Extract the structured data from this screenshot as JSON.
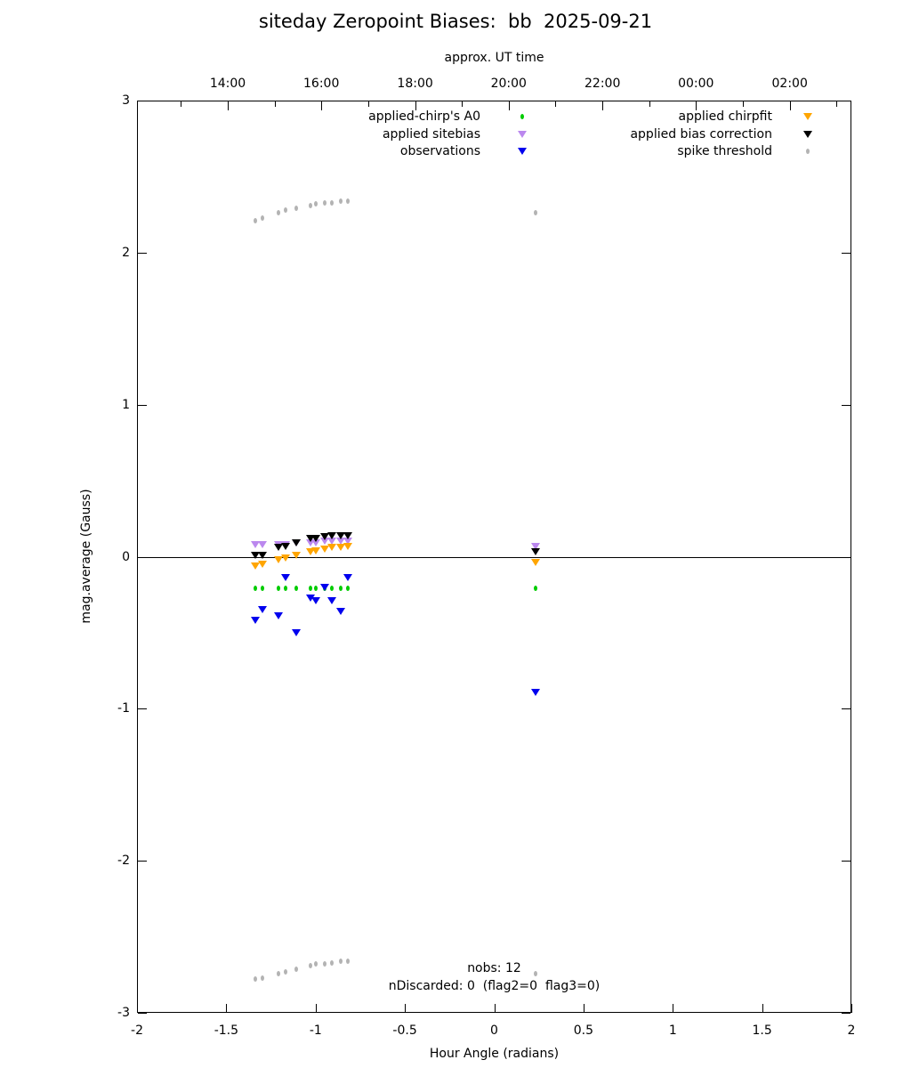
{
  "title": "siteday Zeropoint Biases:  bb  2025-09-21",
  "axes": {
    "x2_label": "approx. UT time",
    "x_label": "Hour Angle (radians)",
    "y_label": "mag.average (Gauss)"
  },
  "annotations": {
    "nobs": "nobs: 12",
    "ndiscarded": "nDiscarded: 0  (flag2=0  flag3=0)"
  },
  "legend": {
    "entries": [
      {
        "label": "applied-chirp's A0",
        "marker": "dot",
        "color": "#00cc00",
        "col": 0,
        "row": 0
      },
      {
        "label": "applied chirpfit",
        "marker": "triangle",
        "color": "#ffa500",
        "col": 1,
        "row": 0
      },
      {
        "label": "applied sitebias",
        "marker": "triangle",
        "color": "#bb88ee",
        "col": 0,
        "row": 1
      },
      {
        "label": "applied bias correction",
        "marker": "triangle",
        "color": "#000000",
        "col": 1,
        "row": 1
      },
      {
        "label": "observations",
        "marker": "triangle",
        "color": "#0000ee",
        "col": 0,
        "row": 2
      },
      {
        "label": "spike threshold",
        "marker": "dot",
        "color": "#b3b3b3",
        "col": 1,
        "row": 2
      }
    ]
  },
  "chart_data": {
    "type": "scatter",
    "title": "siteday Zeropoint Biases:  bb  2025-09-21",
    "xlabel": "Hour Angle (radians)",
    "ylabel": "mag.average (Gauss)",
    "x2label": "approx. UT time",
    "xlim": [
      -2,
      2
    ],
    "ylim": [
      -3,
      3
    ],
    "grid": false,
    "legend_position": "top",
    "x_ticks": [
      -2,
      -1.5,
      -1,
      -0.5,
      0,
      0.5,
      1,
      1.5,
      2
    ],
    "x_tick_labels": [
      "-2",
      "-1.5",
      "-1",
      "-0.5",
      "0",
      "0.5",
      "1",
      "1.5",
      "2"
    ],
    "y_ticks": [
      3,
      2,
      1,
      0,
      -1,
      -2,
      -3
    ],
    "y_tick_labels": [
      "3",
      "2",
      "1",
      "0",
      "-1",
      "-2",
      "-3"
    ],
    "x2_major_ticks": [
      -1.492,
      -0.968,
      -0.443,
      0.081,
      0.606,
      1.13,
      1.655
    ],
    "x2_tick_labels": [
      "14:00",
      "16:00",
      "18:00",
      "20:00",
      "22:00",
      "00:00",
      "02:00"
    ],
    "x2_minor_ticks": [
      -1.754,
      -1.23,
      -0.705,
      -0.181,
      0.343,
      0.868,
      1.392,
      1.917
    ],
    "series": [
      {
        "name": "spike threshold",
        "marker": "dot",
        "color": "#b3b3b3",
        "x": [
          -1.34,
          -1.3,
          -1.21,
          -1.17,
          -1.11,
          -1.03,
          -1.0,
          -0.95,
          -0.91,
          -0.86,
          -0.82,
          0.23,
          -1.34,
          -1.3,
          -1.21,
          -1.17,
          -1.11,
          -1.03,
          -1.0,
          -0.95,
          -0.91,
          -0.86,
          -0.82,
          0.23
        ],
        "y": [
          2.21,
          2.23,
          2.26,
          2.28,
          2.29,
          2.31,
          2.32,
          2.33,
          2.33,
          2.34,
          2.34,
          2.26,
          -2.78,
          -2.77,
          -2.74,
          -2.73,
          -2.71,
          -2.69,
          -2.68,
          -2.68,
          -2.67,
          -2.66,
          -2.66,
          -2.74
        ]
      },
      {
        "name": "applied-chirp's A0",
        "marker": "dot",
        "color": "#00cc00",
        "x": [
          -1.34,
          -1.3,
          -1.21,
          -1.17,
          -1.11,
          -1.03,
          -1.0,
          -0.95,
          -0.91,
          -0.86,
          -0.82,
          0.23
        ],
        "y": [
          -0.21,
          -0.21,
          -0.21,
          -0.21,
          -0.21,
          -0.21,
          -0.21,
          -0.21,
          -0.21,
          -0.21,
          -0.21,
          -0.21
        ]
      },
      {
        "name": "applied sitebias",
        "marker": "triangle",
        "color": "#bb88ee",
        "x": [
          -1.34,
          -1.3,
          -1.21,
          -1.17,
          -1.11,
          -1.03,
          -1.0,
          -0.95,
          -0.91,
          -0.86,
          -0.82,
          0.23
        ],
        "y": [
          0.08,
          0.08,
          0.08,
          0.08,
          0.09,
          0.09,
          0.09,
          0.1,
          0.1,
          0.1,
          0.1,
          0.07
        ]
      },
      {
        "name": "applied chirpfit",
        "marker": "triangle",
        "color": "#ffa500",
        "x": [
          -1.34,
          -1.3,
          -1.21,
          -1.17,
          -1.11,
          -1.03,
          -1.0,
          -0.95,
          -0.91,
          -0.86,
          -0.82,
          0.23
        ],
        "y": [
          -0.06,
          -0.05,
          -0.02,
          -0.01,
          0.01,
          0.03,
          0.04,
          0.05,
          0.06,
          0.06,
          0.07,
          -0.04
        ]
      },
      {
        "name": "applied bias correction",
        "marker": "triangle",
        "color": "#000000",
        "x": [
          -1.34,
          -1.3,
          -1.21,
          -1.17,
          -1.11,
          -1.03,
          -1.0,
          -0.95,
          -0.91,
          -0.86,
          -0.82,
          0.23
        ],
        "y": [
          0.01,
          0.01,
          0.06,
          0.07,
          0.09,
          0.12,
          0.12,
          0.13,
          0.14,
          0.14,
          0.14,
          0.03
        ]
      },
      {
        "name": "observations",
        "marker": "triangle",
        "color": "#0000ee",
        "x": [
          -1.34,
          -1.3,
          -1.21,
          -1.17,
          -1.11,
          -1.03,
          -1.0,
          -0.95,
          -0.91,
          -0.86,
          -0.82,
          0.23
        ],
        "y": [
          -0.42,
          -0.35,
          -0.39,
          -0.14,
          -0.5,
          -0.27,
          -0.29,
          -0.2,
          -0.29,
          -0.36,
          -0.14,
          -0.89
        ]
      }
    ]
  }
}
